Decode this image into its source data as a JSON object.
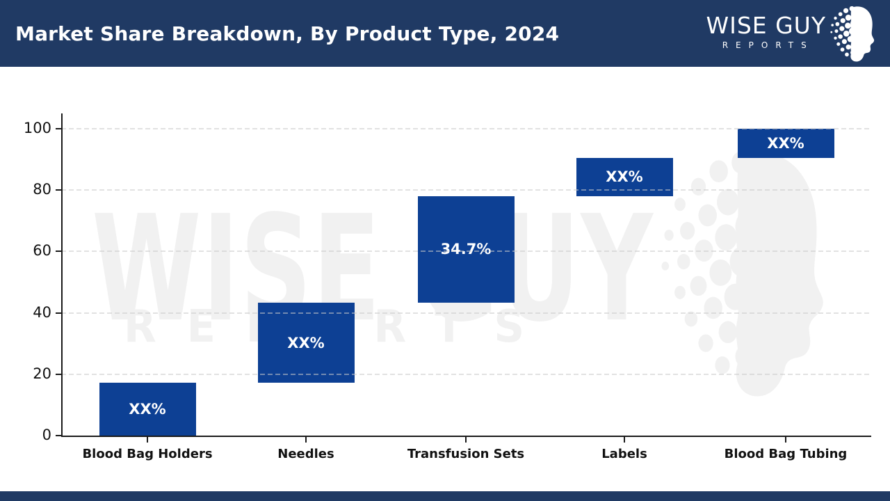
{
  "header": {
    "title": "Market Share Breakdown, By Product Type, 2024"
  },
  "logo": {
    "main": "WISE GUY",
    "sub": "REPORTS"
  },
  "watermark": {
    "main": "WISE GUY",
    "sub": "REPORTS"
  },
  "colors": {
    "navy": "#203a64",
    "bar_blue": "#0d4094",
    "watermark_gray": "#f1f1f1"
  },
  "chart_data": {
    "type": "bar",
    "subtype": "waterfall",
    "title": "Market Share Breakdown, By Product Type, 2024",
    "categories": [
      "Blood Bag Holders",
      "Needles",
      "Transfusion Sets",
      "Labels",
      "Blood Bag Tubing"
    ],
    "segments": [
      {
        "start": 0,
        "end": 17.2
      },
      {
        "start": 17.2,
        "end": 43.3
      },
      {
        "start": 43.3,
        "end": 78.0
      },
      {
        "start": 78.0,
        "end": 90.4
      },
      {
        "start": 90.4,
        "end": 100.0
      }
    ],
    "bar_labels": [
      "XX%",
      "XX%",
      "34.7%",
      "XX%",
      "XX%"
    ],
    "highlighted_value": "34.7%",
    "xlabel": "",
    "ylabel": "",
    "ylim": [
      0,
      105
    ],
    "yticks": [
      0,
      20,
      40,
      60,
      80,
      100
    ],
    "grid": "dashed horizontal",
    "legend": "none"
  }
}
